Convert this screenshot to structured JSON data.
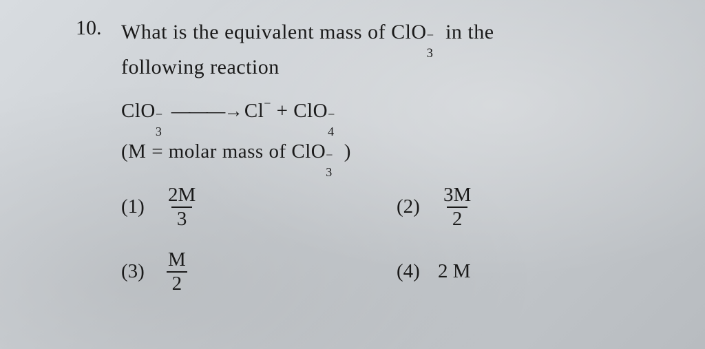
{
  "question": {
    "number": "10.",
    "line1_a": "What is the equivalent mass of ",
    "line1_formula_base": "ClO",
    "line1_formula_sub": "3",
    "line1_formula_sup": "−",
    "line1_b": " in the",
    "line2": "following reaction",
    "reaction": {
      "lhs_base": "ClO",
      "lhs_sub": "3",
      "lhs_sup": "−",
      "arrow": "———→",
      "r1_base": "Cl",
      "r1_sup": "−",
      "plus": " + ",
      "r2_base": "ClO",
      "r2_sub": "4",
      "r2_sup": "−"
    },
    "paren": {
      "a": "(M = molar mass of ",
      "base": "ClO",
      "sub": "3",
      "sup": "−",
      "b": " )"
    }
  },
  "options": {
    "o1": {
      "n": "(1)",
      "num": "2M",
      "den": "3"
    },
    "o2": {
      "n": "(2)",
      "num": "3M",
      "den": "2"
    },
    "o3": {
      "n": "(3)",
      "num": "M",
      "den": "2"
    },
    "o4": {
      "n": "(4)",
      "text": "2 M"
    }
  }
}
